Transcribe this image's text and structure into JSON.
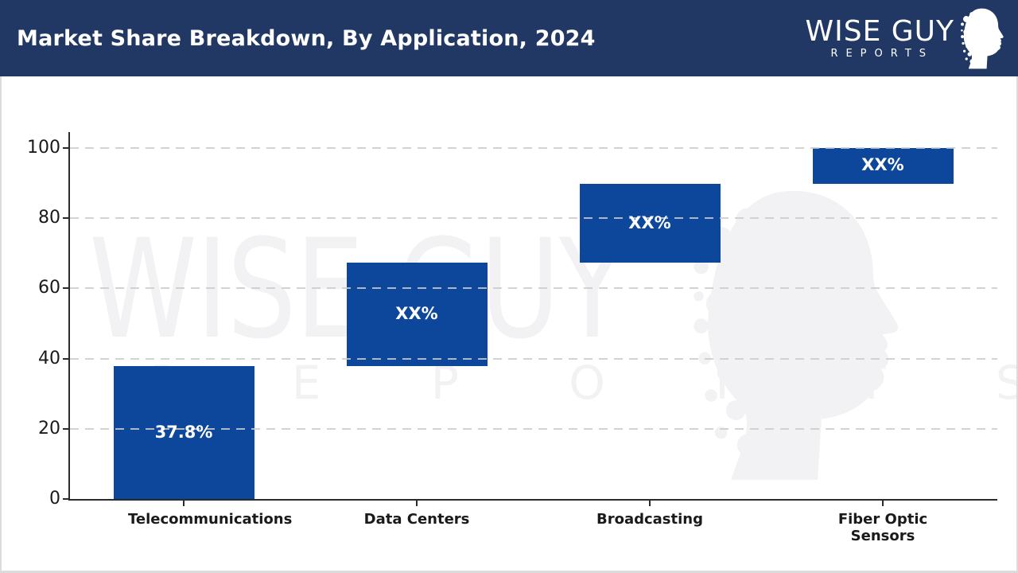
{
  "header": {
    "title": "Market Share Breakdown, By Application, 2024",
    "logo": {
      "name": "WISE GUY",
      "tagline": "REPORTS"
    }
  },
  "watermark": {
    "name": "WISE GUY",
    "tagline": "R E P O R T S"
  },
  "chart_data": {
    "type": "bar",
    "subtype": "waterfall",
    "title": "Market Share Breakdown, By Application, 2024",
    "categories": [
      "Telecommunications",
      "Data Centers",
      "Broadcasting",
      "Fiber Optic Sensors"
    ],
    "segments": [
      {
        "category": "Telecommunications",
        "start": 0,
        "end": 37.8,
        "label": "37.8%"
      },
      {
        "category": "Data Centers",
        "start": 37.8,
        "end": 67.3,
        "label": "XX%"
      },
      {
        "category": "Broadcasting",
        "start": 67.3,
        "end": 89.8,
        "label": "XX%"
      },
      {
        "category": "Fiber Optic Sensors",
        "start": 89.8,
        "end": 100,
        "label": "XX%"
      }
    ],
    "y_ticks": [
      0,
      20,
      40,
      60,
      80,
      100
    ],
    "ylim": [
      0,
      100
    ],
    "xlabel": "",
    "ylabel": "",
    "grid": "horizontal-dashed",
    "legend": "none",
    "bar_color": "#0c479b",
    "bar_label_color": "#ffffff"
  },
  "colors": {
    "header_bg": "#213864",
    "bar": "#0c479b",
    "grid": "#d9d9d9",
    "axis": "#2b2b2b",
    "watermark": "#f2f2f4",
    "frame": "#dcdcdc"
  }
}
